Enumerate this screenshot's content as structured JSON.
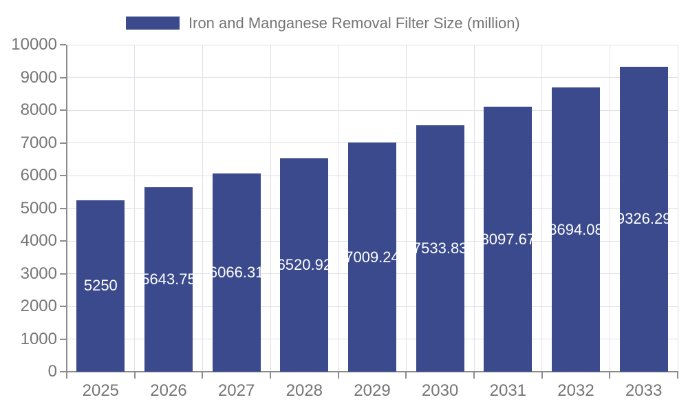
{
  "chart_data": {
    "type": "bar",
    "legend": "Iron and Manganese Removal Filter Size (million)",
    "categories": [
      "2025",
      "2026",
      "2027",
      "2028",
      "2029",
      "2030",
      "2031",
      "2032",
      "2033"
    ],
    "values": [
      5250,
      5643.75,
      6066.31,
      6520.92,
      7009.24,
      7533.83,
      8097.67,
      8694.08,
      9326.29
    ],
    "value_labels": [
      "5250",
      "5643.75",
      "6066.31",
      "6520.92",
      "7009.24",
      "7533.83",
      "8097.67",
      "8694.08",
      "9326.29"
    ],
    "xlabel": "",
    "ylabel": "",
    "ylim": [
      0,
      10000
    ],
    "y_tick_step": 1000,
    "y_tick_labels": [
      "0",
      "1000",
      "2000",
      "3000",
      "4000",
      "5000",
      "6000",
      "7000",
      "8000",
      "9000",
      "10000"
    ],
    "grid": true,
    "legend_position": "top",
    "colors": {
      "bar": "#3A4A8C",
      "grid_line": "#E0E0E6",
      "axis_line": "#8C8C8C",
      "tick_text": "#757575",
      "value_label_text": "#FFFFFF",
      "legend_text": "#757575",
      "background": "#FFFFFF"
    }
  }
}
